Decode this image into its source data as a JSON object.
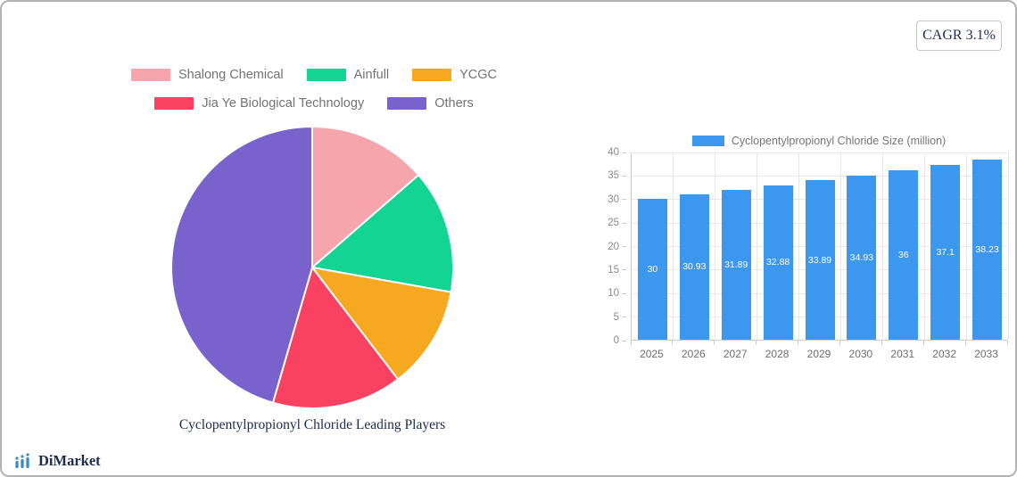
{
  "cagr_badge": {
    "label": "CAGR 3.1%"
  },
  "brand": {
    "icon": "bar-chart-logo-icon",
    "name": "DiMarket",
    "icon_color": "#3d86c6"
  },
  "chart_data": [
    {
      "type": "pie",
      "title": "Cyclopentylpropionyl Chloride Leading Players",
      "labels": [
        "Shalong Chemical",
        "Ainfull",
        "YCGC",
        "Jia Ye Biological Technology",
        "Others"
      ],
      "values": [
        13.6,
        14.2,
        11.8,
        14.9,
        45.5
      ],
      "unit": "percent",
      "colors": [
        "#f5a5ab",
        "#13d492",
        "#f7a821",
        "#f94261",
        "#7a62cd"
      ],
      "legend_position": "top",
      "legend_rows": [
        [
          0,
          1,
          2
        ],
        [
          3,
          4
        ]
      ],
      "start_angle": "12-oclock-clockwise",
      "slice_gap_color": "#ffffff"
    },
    {
      "type": "bar",
      "title": "Cyclopentylpropionyl Chloride Size (million)",
      "categories": [
        "2025",
        "2026",
        "2027",
        "2028",
        "2029",
        "2030",
        "2031",
        "2032",
        "2033"
      ],
      "values": [
        30,
        30.93,
        31.89,
        32.88,
        33.89,
        34.93,
        36,
        37.1,
        38.23
      ],
      "value_labels": [
        "30",
        "30.93",
        "31.89",
        "32.88",
        "33.89",
        "34.93",
        "36",
        "37.1",
        "38.23"
      ],
      "bar_color": "#3c98ee",
      "ylim": [
        0,
        40
      ],
      "ytick_step": 5,
      "grid": true,
      "legend_position": "top"
    }
  ]
}
